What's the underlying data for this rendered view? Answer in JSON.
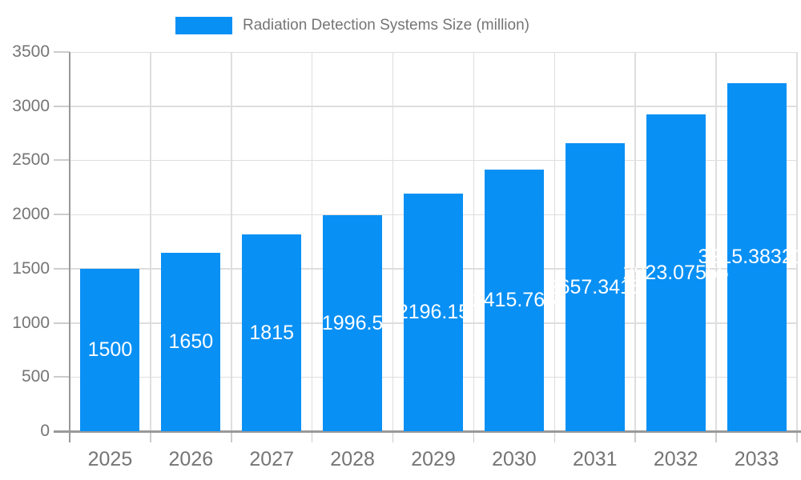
{
  "legend": {
    "label": "Radiation Detection Systems Size (million)"
  },
  "colors": {
    "bar": "#0990f5",
    "axis_label": "#757575",
    "grid_line": "#dedede",
    "axis_line": "#999999",
    "tick": "#cccccc",
    "value_label": "#ffffff"
  },
  "chart_data": {
    "type": "bar",
    "title": "Radiation Detection Systems Size (million)",
    "series_name": "Radiation Detection Systems Size (million)",
    "categories": [
      "2025",
      "2026",
      "2027",
      "2028",
      "2029",
      "2030",
      "2031",
      "2032",
      "2033"
    ],
    "values": [
      1500,
      1650,
      1815,
      1996.5,
      2196.15,
      2415.765,
      2657.3415,
      2923.07565,
      3215.383215
    ],
    "value_labels": [
      "1500",
      "1650",
      "1815",
      "1996.5",
      "2196.15",
      "2415.765",
      "2657.3415",
      "2923.07565",
      "3215.383215"
    ],
    "xlabel": "",
    "ylabel": "",
    "ylim": [
      0,
      3500
    ],
    "yticks": [
      0,
      500,
      1000,
      1500,
      2000,
      2500,
      3000,
      3500
    ],
    "grid": true,
    "legend_position": "top"
  }
}
